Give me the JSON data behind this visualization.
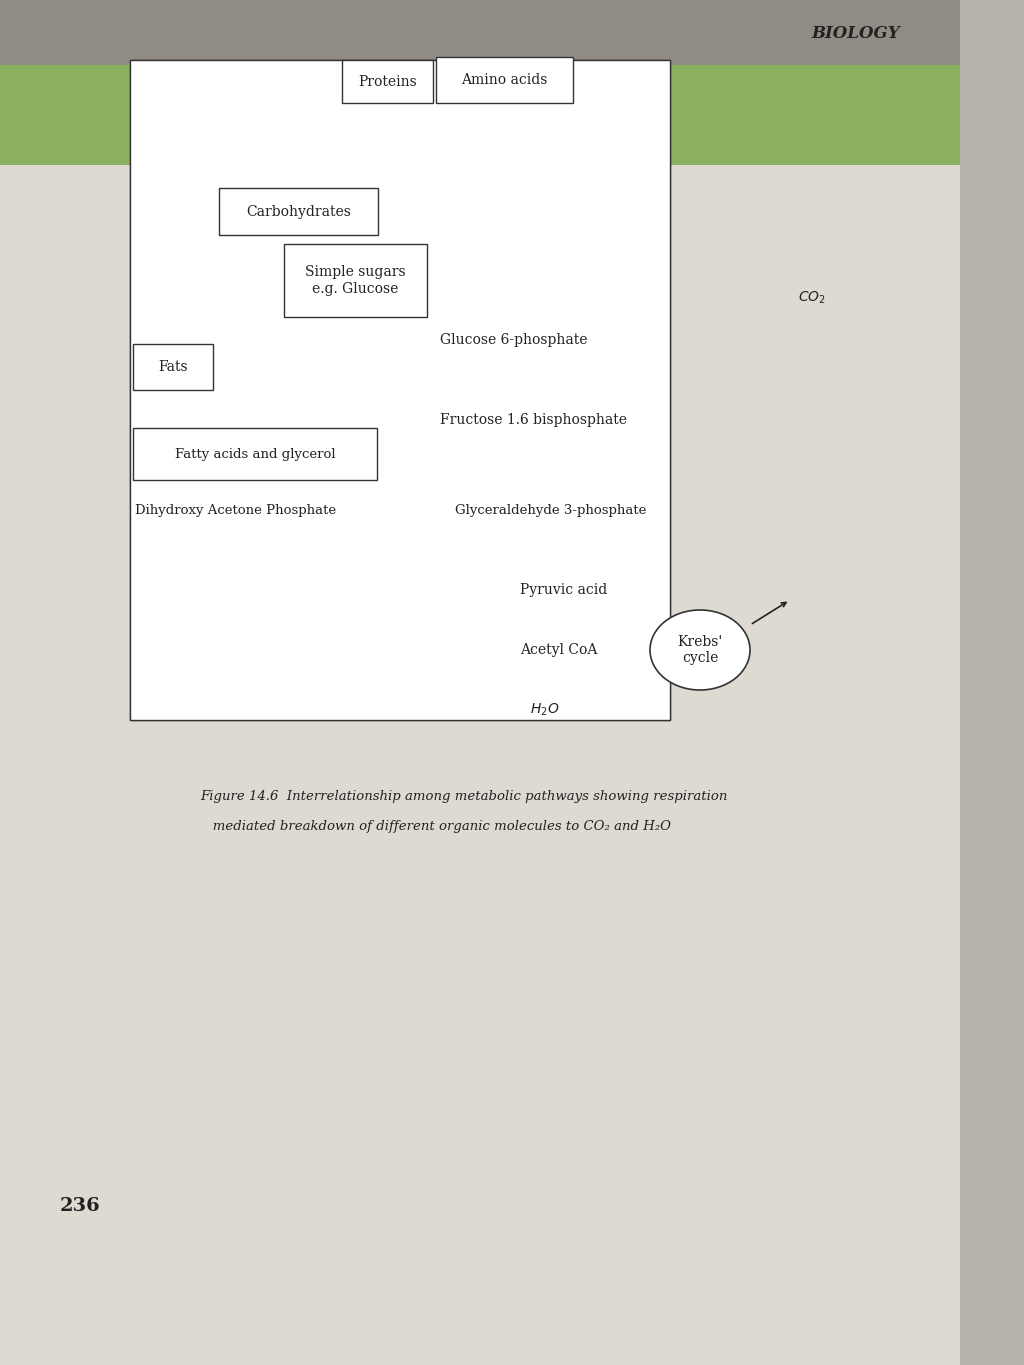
{
  "page_number": "236",
  "header_text": "BIOLOGY",
  "bg_color_top": "#c8c4bc",
  "bg_color_bottom": "#a0c070",
  "paper_color": "#dedad2",
  "text_color": "#222222",
  "fig_caption_line1": "Figure 14.6  Interrelationship among metabolic pathways showing respiration",
  "fig_caption_line2": "   mediated breakdown of different organic molecules to CO₂ and H₂O"
}
